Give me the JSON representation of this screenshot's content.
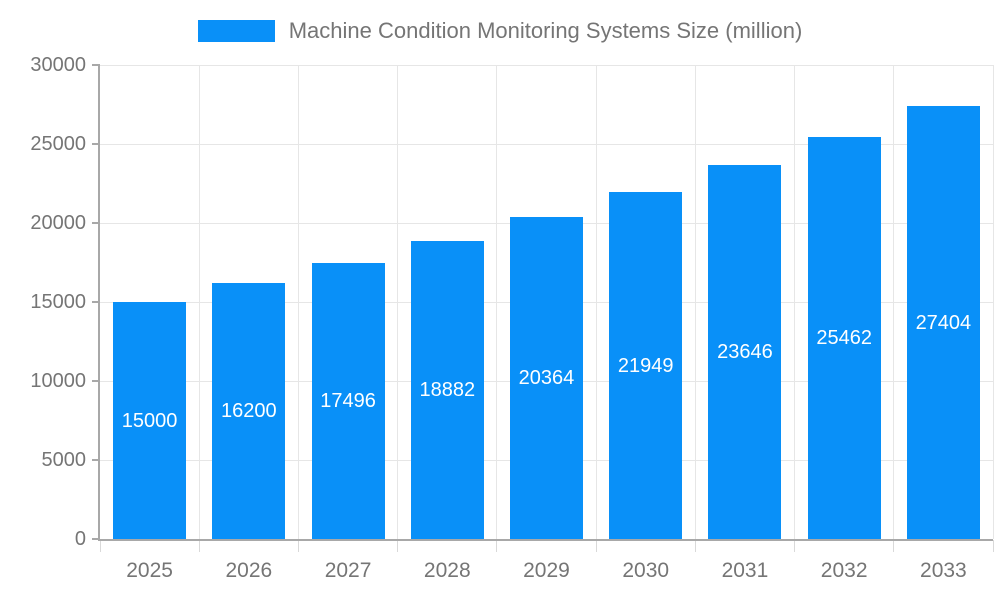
{
  "chart_data": {
    "type": "bar",
    "title": "Machine Condition Monitoring Systems Size (million)",
    "categories": [
      "2025",
      "2026",
      "2027",
      "2028",
      "2029",
      "2030",
      "2031",
      "2032",
      "2033"
    ],
    "values": [
      15000,
      16200,
      17496,
      18882,
      20364,
      21949,
      23646,
      25462,
      27404
    ],
    "xlabel": "",
    "ylabel": "",
    "ylim": [
      0,
      30000
    ],
    "y_ticks": [
      0,
      5000,
      10000,
      15000,
      20000,
      25000,
      30000
    ],
    "grid": {
      "horizontal": true,
      "vertical": true
    },
    "legend_position": "top-center",
    "bar_labels_visible": true,
    "bar_label_position": "center-inside",
    "colors": {
      "bar": "#0990f8",
      "bar_label_text": "#ffffff",
      "axis_line": "#a8a8a8",
      "gridline": "#e6e6e6",
      "minor_tick": "#d9d9d9",
      "tick_text": "#757575",
      "legend_text": "#757575",
      "background": "#ffffff"
    }
  }
}
